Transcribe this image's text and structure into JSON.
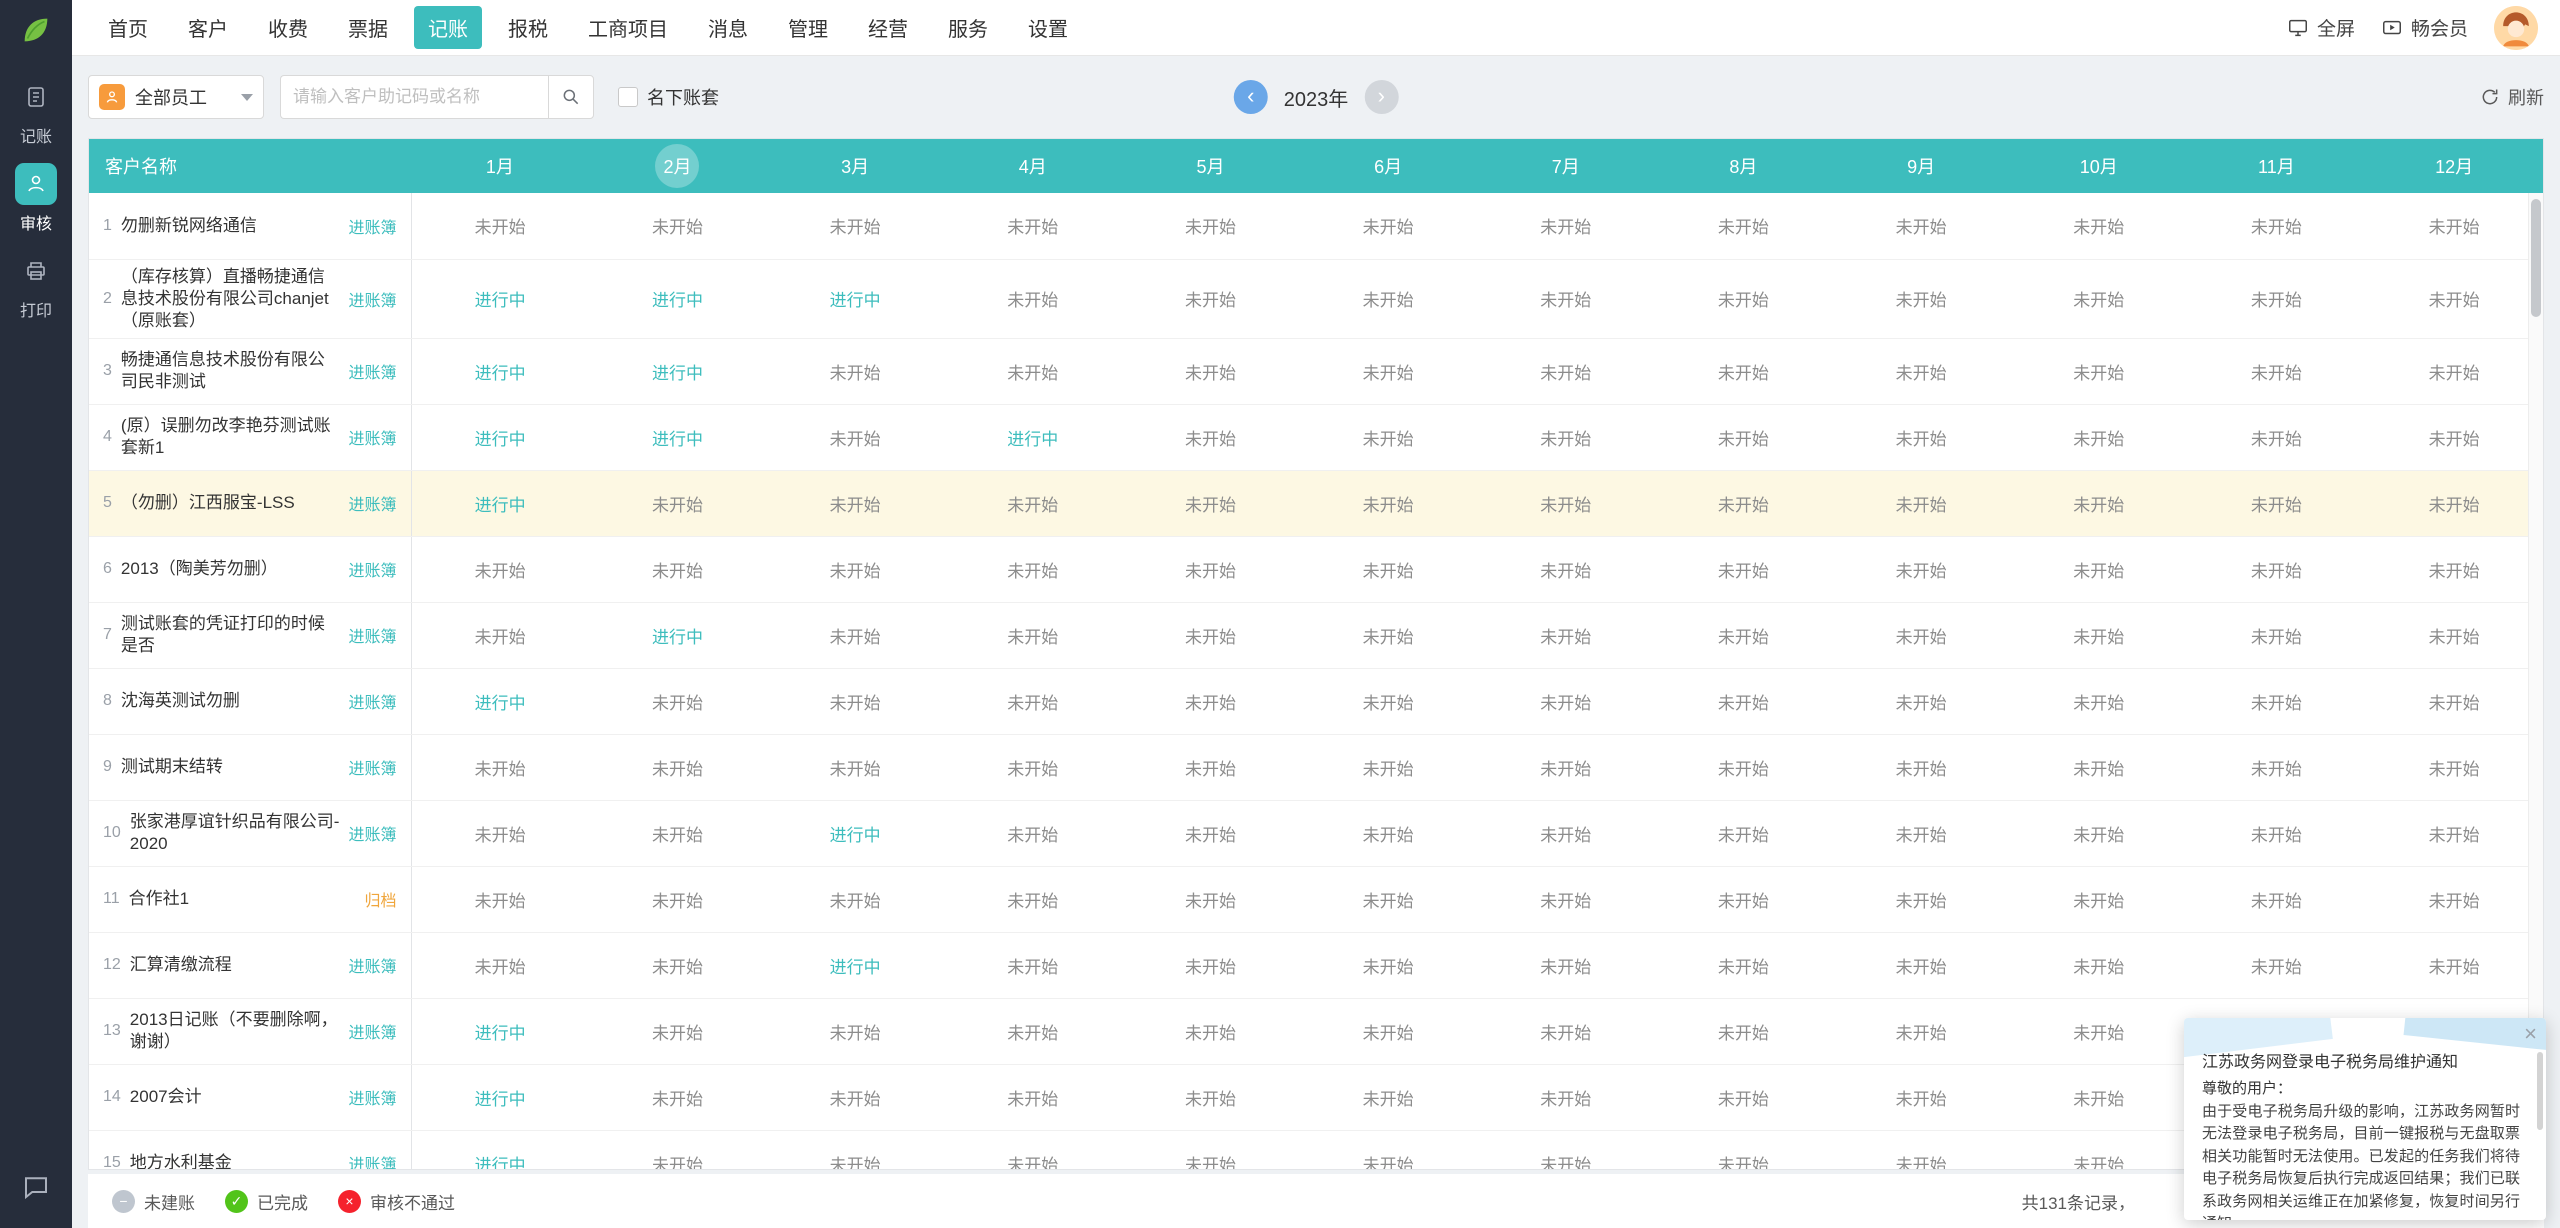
{
  "colors": {
    "accent": "#3dbdbd",
    "sidebar-bg": "#262d3b",
    "in-progress": "#3dbdbd",
    "not-started": "#8c8c8c",
    "archive": "#f0a63c",
    "done-green": "#52c41a",
    "fail-red": "#f5222d",
    "highlight-row": "#fdf8e3",
    "logo-green": "#76c043"
  },
  "sidebar": {
    "items": [
      {
        "label": "记账",
        "icon": "ledger-icon",
        "active": false
      },
      {
        "label": "审核",
        "icon": "audit-icon",
        "active": true
      },
      {
        "label": "打印",
        "icon": "printer-icon",
        "active": false
      }
    ]
  },
  "topnav": {
    "items": [
      "首页",
      "客户",
      "收费",
      "票据",
      "记账",
      "报税",
      "工商项目",
      "消息",
      "管理",
      "经营",
      "服务",
      "设置"
    ],
    "active": "记账",
    "fullscreen_label": "全屏",
    "member_label": "畅会员"
  },
  "toolbar": {
    "employee_filter_value": "全部员工",
    "search_placeholder": "请输入客户助记码或名称",
    "checkbox_label": "名下账套",
    "checkbox_checked": false,
    "year_label": "2023年",
    "prev_year_glyph": "‹",
    "next_year_glyph": "›",
    "refresh_label": "刷新"
  },
  "table": {
    "columns": [
      "客户名称",
      "1月",
      "2月",
      "3月",
      "4月",
      "5月",
      "6月",
      "7月",
      "8月",
      "9月",
      "10月",
      "11月",
      "12月"
    ],
    "current_month": "2月",
    "status_labels": {
      "not_started": "未开始",
      "in_progress": "进行中"
    },
    "rows": [
      {
        "index": 1,
        "name": "勿删新锐网络通信",
        "action": "进账簿",
        "in_progress_months": []
      },
      {
        "index": 2,
        "name": "（库存核算）直播畅捷通信息技术股份有限公司chanjet（原账套）",
        "action": "进账簿",
        "in_progress_months": [
          1,
          2,
          3
        ]
      },
      {
        "index": 3,
        "name": "畅捷通信息技术股份有限公司民非测试",
        "action": "进账簿",
        "in_progress_months": [
          1,
          2
        ]
      },
      {
        "index": 4,
        "name": "(原）误删勿改李艳芬测试账套新1",
        "action": "进账簿",
        "in_progress_months": [
          1,
          2,
          4
        ]
      },
      {
        "index": 5,
        "name": "（勿删）江西服宝-LSS",
        "action": "进账簿",
        "in_progress_months": [
          1
        ],
        "highlighted": true
      },
      {
        "index": 6,
        "name": "2013（陶美芳勿删）",
        "action": "进账簿",
        "in_progress_months": []
      },
      {
        "index": 7,
        "name": "测试账套的凭证打印的时候是否",
        "action": "进账簿",
        "in_progress_months": [
          2
        ]
      },
      {
        "index": 8,
        "name": "沈海英测试勿删",
        "action": "进账簿",
        "in_progress_months": [
          1
        ]
      },
      {
        "index": 9,
        "name": "测试期末结转",
        "action": "进账簿",
        "in_progress_months": []
      },
      {
        "index": 10,
        "name": "张家港厚谊针织品有限公司-2020",
        "action": "进账簿",
        "in_progress_months": [
          3
        ]
      },
      {
        "index": 11,
        "name": "合作社1",
        "action": "归档",
        "action_style": "archive",
        "in_progress_months": []
      },
      {
        "index": 12,
        "name": "汇算清缴流程",
        "action": "进账簿",
        "in_progress_months": [
          3
        ]
      },
      {
        "index": 13,
        "name": "2013日记账（不要删除啊，谢谢）",
        "action": "进账簿",
        "in_progress_months": [
          1
        ]
      },
      {
        "index": 14,
        "name": "2007会计",
        "action": "进账簿",
        "in_progress_months": [
          1
        ]
      },
      {
        "index": 15,
        "name": "地方水利基金",
        "action": "进账簿",
        "in_progress_months": [
          1
        ]
      }
    ]
  },
  "statusbar": {
    "legend": [
      {
        "label": "未建账",
        "type": "not-created"
      },
      {
        "label": "已完成",
        "type": "done"
      },
      {
        "label": "审核不通过",
        "type": "rejected"
      }
    ],
    "record_count": "共131条记录，"
  },
  "notice": {
    "title": "江苏政务网登录电子税务局维护通知",
    "greeting": "尊敬的用户：",
    "body": "由于受电子税务局升级的影响，江苏政务网暂时无法登录电子税务局，目前一键报税与无盘取票相关功能暂时无法使用。已发起的任务我们将待电子税务局恢复后执行完成返回结果；我们已联系政务网相关运维正在加紧修复，恢复时间另行通知。"
  }
}
